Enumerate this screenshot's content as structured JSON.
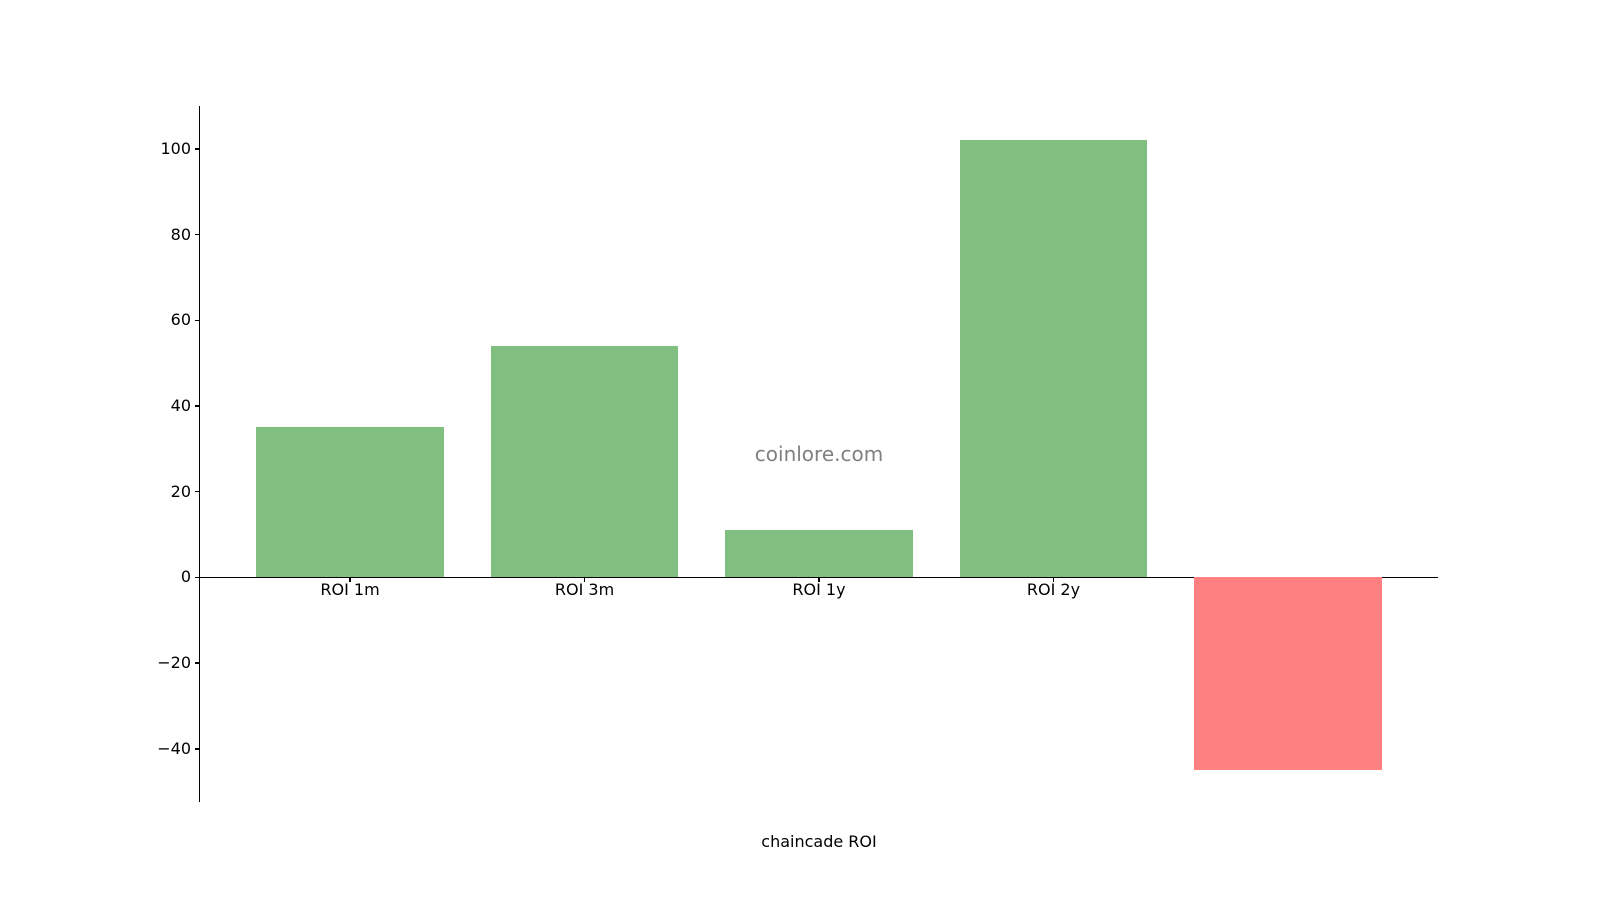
{
  "chart_data": {
    "type": "bar",
    "title": "",
    "xlabel": "chaincade ROI",
    "ylabel": "",
    "categories": [
      "ROI 1m",
      "ROI 3m",
      "ROI 1y",
      "ROI 2y",
      ""
    ],
    "values": [
      35,
      54,
      11,
      102,
      -45
    ],
    "bar_colors": [
      "#80bf80",
      "#80bf80",
      "#80bf80",
      "#80bf80",
      "#ff8080"
    ],
    "positive_color": "#80bf80",
    "negative_color": "#ff8080",
    "axis_color": "#000000",
    "watermark_color": "#808080",
    "ylim": [
      -52.4,
      110
    ],
    "xlim": [
      -0.64,
      4.64
    ],
    "bar_width": 0.8,
    "ytick_values": [
      100,
      80,
      60,
      40,
      20,
      0,
      -20,
      -40
    ],
    "ytick_labels": [
      "100",
      "80",
      "60",
      "40",
      "20",
      "0",
      "−20",
      "−40"
    ],
    "grid": false,
    "legend": false,
    "watermark": "coinlore.com"
  }
}
